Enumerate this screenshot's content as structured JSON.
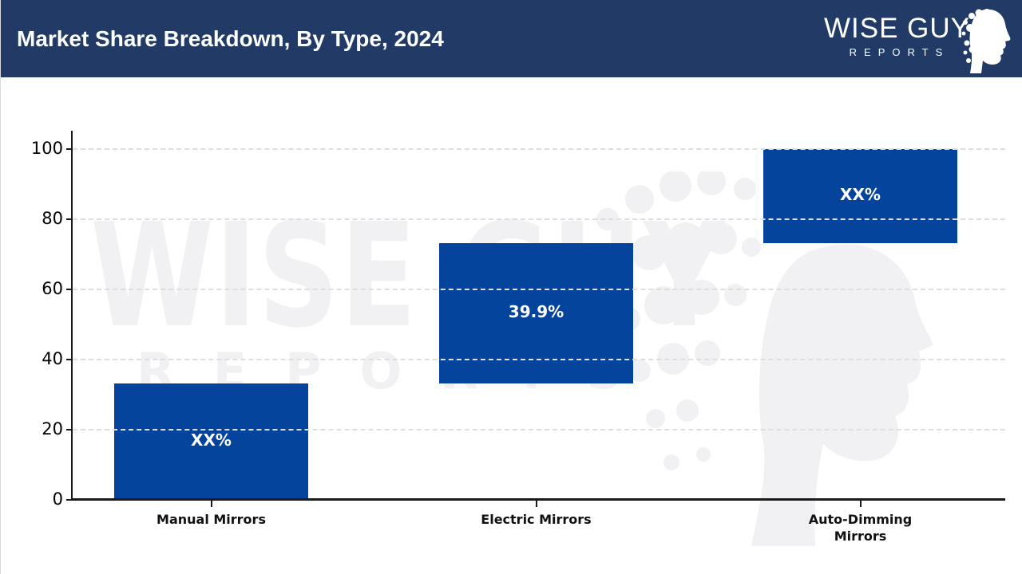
{
  "header": {
    "title": "Market Share Breakdown, By Type, 2024",
    "logo": {
      "name": "WISE GUY",
      "subtitle": "REPORTS"
    }
  },
  "watermark": {
    "line1": "WISE GUY",
    "line2": "REPORTS"
  },
  "colors": {
    "header_bg": "#213a66",
    "bar": "#04449c",
    "bar_label": "#ffffff",
    "gridline": "#dedede",
    "axis": "#1a1a1a",
    "watermark": "#f1f1f3"
  },
  "chart_data": {
    "type": "bar",
    "subtype": "floating-stacked-percentage",
    "title": "Market Share Breakdown, By Type, 2024",
    "xlabel": "",
    "ylabel": "",
    "ylim": [
      0,
      108
    ],
    "yticks": [
      0,
      20,
      40,
      60,
      80,
      100
    ],
    "grid": "dashed-horizontal",
    "legend": "none",
    "categories": [
      "Manual Mirrors",
      "Electric Mirrors",
      "Auto-Dimming\nMirrors"
    ],
    "segments": [
      {
        "category": "Manual Mirrors",
        "start": 0,
        "end": 33.2,
        "label": "XX%"
      },
      {
        "category": "Electric Mirrors",
        "start": 33.2,
        "end": 73.1,
        "label": "39.9%"
      },
      {
        "category": "Auto-Dimming Mirrors",
        "start": 73.1,
        "end": 100,
        "label": "XX%"
      }
    ]
  }
}
